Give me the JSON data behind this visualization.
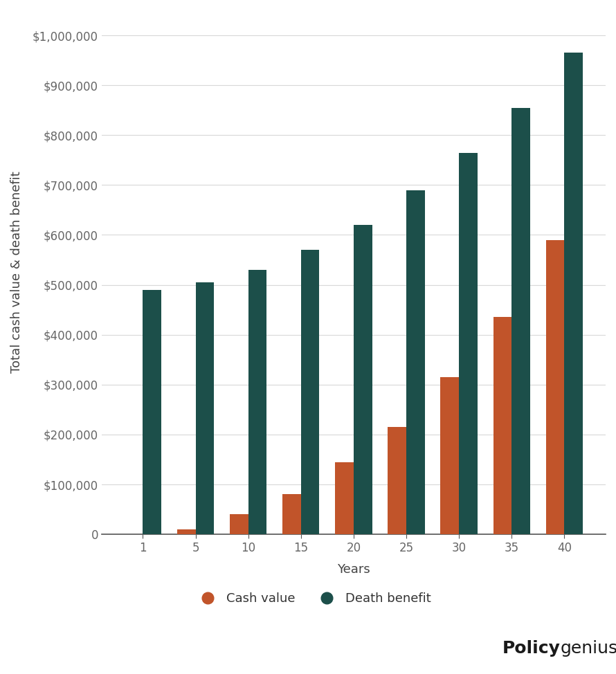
{
  "years": [
    1,
    5,
    10,
    15,
    20,
    25,
    30,
    35,
    40
  ],
  "cash_value": [
    0,
    10000,
    40000,
    80000,
    145000,
    215000,
    315000,
    435000,
    590000
  ],
  "death_benefit": [
    490000,
    505000,
    530000,
    570000,
    620000,
    690000,
    765000,
    855000,
    965000
  ],
  "cash_value_color": "#C1542A",
  "death_benefit_color": "#1C4F4A",
  "ylabel": "Total cash value & death benefit",
  "xlabel": "Years",
  "ylim": [
    0,
    1050000
  ],
  "yticks": [
    0,
    100000,
    200000,
    300000,
    400000,
    500000,
    600000,
    700000,
    800000,
    900000,
    1000000
  ],
  "ytick_labels": [
    "0",
    "$100,000",
    "$200,000",
    "$300,000",
    "$400,000",
    "$500,000",
    "$600,000",
    "$700,000",
    "$800,000",
    "$900,000",
    "$1,000,000"
  ],
  "legend_cash_value": "Cash value",
  "legend_death_benefit": "Death benefit",
  "brand_bold": "Policy",
  "brand_normal": "genius",
  "background_color": "#ffffff",
  "bar_width": 0.35,
  "grid_color": "#d8d8d8",
  "axis_color": "#555555",
  "tick_label_color": "#666666",
  "label_color": "#444444"
}
